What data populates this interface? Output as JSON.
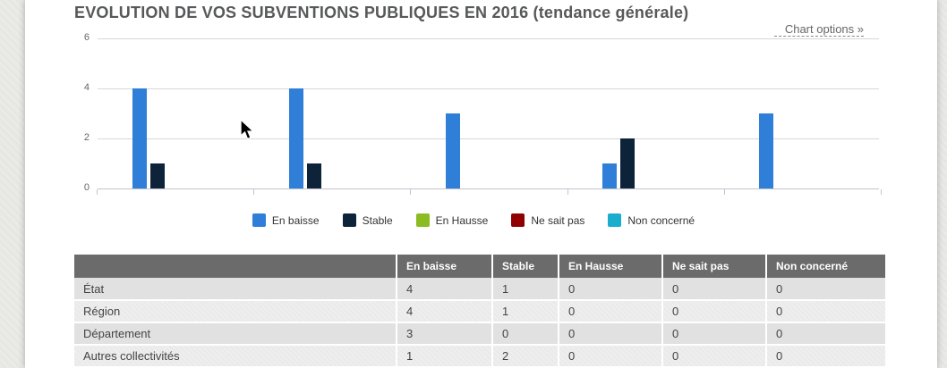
{
  "page": {
    "title": "EVOLUTION DE VOS SUBVENTIONS PUBLIQUES EN 2016 (tendance générale)",
    "chart_options_label": "Chart options »"
  },
  "chart_data": {
    "type": "bar",
    "title": "EVOLUTION DE VOS SUBVENTIONS PUBLIQUES EN 2016 (tendance générale)",
    "categories": [
      "État",
      "Région",
      "Département",
      "Autres collectivités",
      ""
    ],
    "series": [
      {
        "name": "En baisse",
        "color": "#2f7ed8",
        "values": [
          4,
          4,
          3,
          1,
          3
        ]
      },
      {
        "name": "Stable",
        "color": "#0d233a",
        "values": [
          1,
          1,
          0,
          2,
          0
        ]
      },
      {
        "name": "En Hausse",
        "color": "#8bbc21",
        "values": [
          0,
          0,
          0,
          0,
          0
        ]
      },
      {
        "name": "Ne sait pas",
        "color": "#910000",
        "values": [
          0,
          0,
          0,
          0,
          0
        ]
      },
      {
        "name": "Non concerné",
        "color": "#1aadce",
        "values": [
          0,
          0,
          0,
          0,
          0
        ]
      }
    ],
    "ylim": [
      0,
      6
    ],
    "yticks": [
      0,
      2,
      4,
      6
    ],
    "grid": true,
    "legend_position": "bottom",
    "xlabel": "",
    "ylabel": ""
  },
  "legend": {
    "items": [
      {
        "label": "En baisse",
        "color": "#2f7ed8"
      },
      {
        "label": "Stable",
        "color": "#0d233a"
      },
      {
        "label": "En Hausse",
        "color": "#8bbc21"
      },
      {
        "label": "Ne sait pas",
        "color": "#910000"
      },
      {
        "label": "Non concerné",
        "color": "#1aadce"
      }
    ]
  },
  "table": {
    "headers": [
      "",
      "En baisse",
      "Stable",
      "En Hausse",
      "Ne sait pas",
      "Non concerné"
    ],
    "rows": [
      {
        "label": "État",
        "values": [
          "4",
          "1",
          "0",
          "0",
          "0"
        ]
      },
      {
        "label": "Région",
        "values": [
          "4",
          "1",
          "0",
          "0",
          "0"
        ]
      },
      {
        "label": "Département",
        "values": [
          "3",
          "0",
          "0",
          "0",
          "0"
        ]
      },
      {
        "label": "Autres collectivités",
        "values": [
          "1",
          "2",
          "0",
          "0",
          "0"
        ]
      }
    ]
  }
}
